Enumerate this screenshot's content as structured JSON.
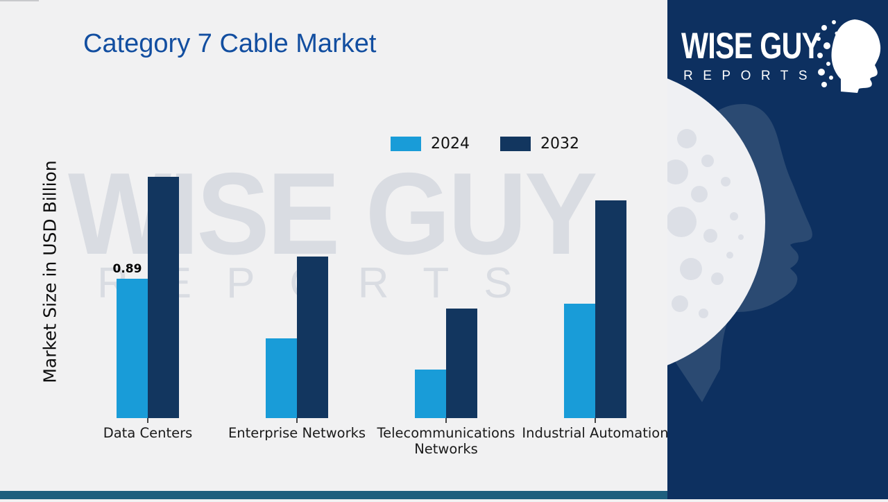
{
  "page": {
    "title": "Category 7 Cable Market"
  },
  "watermark": {
    "line1": "WISE GUY",
    "line2": "REPORTS"
  },
  "logo": {
    "line1": "WISE GUY",
    "line2": "REPORTS"
  },
  "colors": {
    "title": "#124ea0",
    "series_2024": "#199cd8",
    "series_2032": "#12365f",
    "panel_navy": "#0d3060",
    "face_navy": "#2b4a72",
    "circle_light": "#eff0f3",
    "watermark_gray": "#d9dce2",
    "bottom_bar_teal": "#1d5e7e",
    "background": "#f1f1f2"
  },
  "chart_data": {
    "type": "bar",
    "title": "Category 7 Cable Market",
    "xlabel": "",
    "ylabel": "Market Size in USD Billion",
    "categories": [
      "Data Centers",
      "Enterprise Networks",
      "Telecommunications Networks",
      "Industrial Automation"
    ],
    "series": [
      {
        "name": "2024",
        "color": "#199cd8",
        "values": [
          0.89,
          0.51,
          0.31,
          0.73
        ]
      },
      {
        "name": "2032",
        "color": "#12365f",
        "values": [
          1.54,
          1.03,
          0.7,
          1.39
        ]
      }
    ],
    "data_labels": [
      {
        "series": "2024",
        "category": "Data Centers",
        "text": "0.89"
      }
    ],
    "legend_position": "top-center",
    "grid": false,
    "ylim": [
      0,
      1.7
    ],
    "units": "USD Billion"
  }
}
